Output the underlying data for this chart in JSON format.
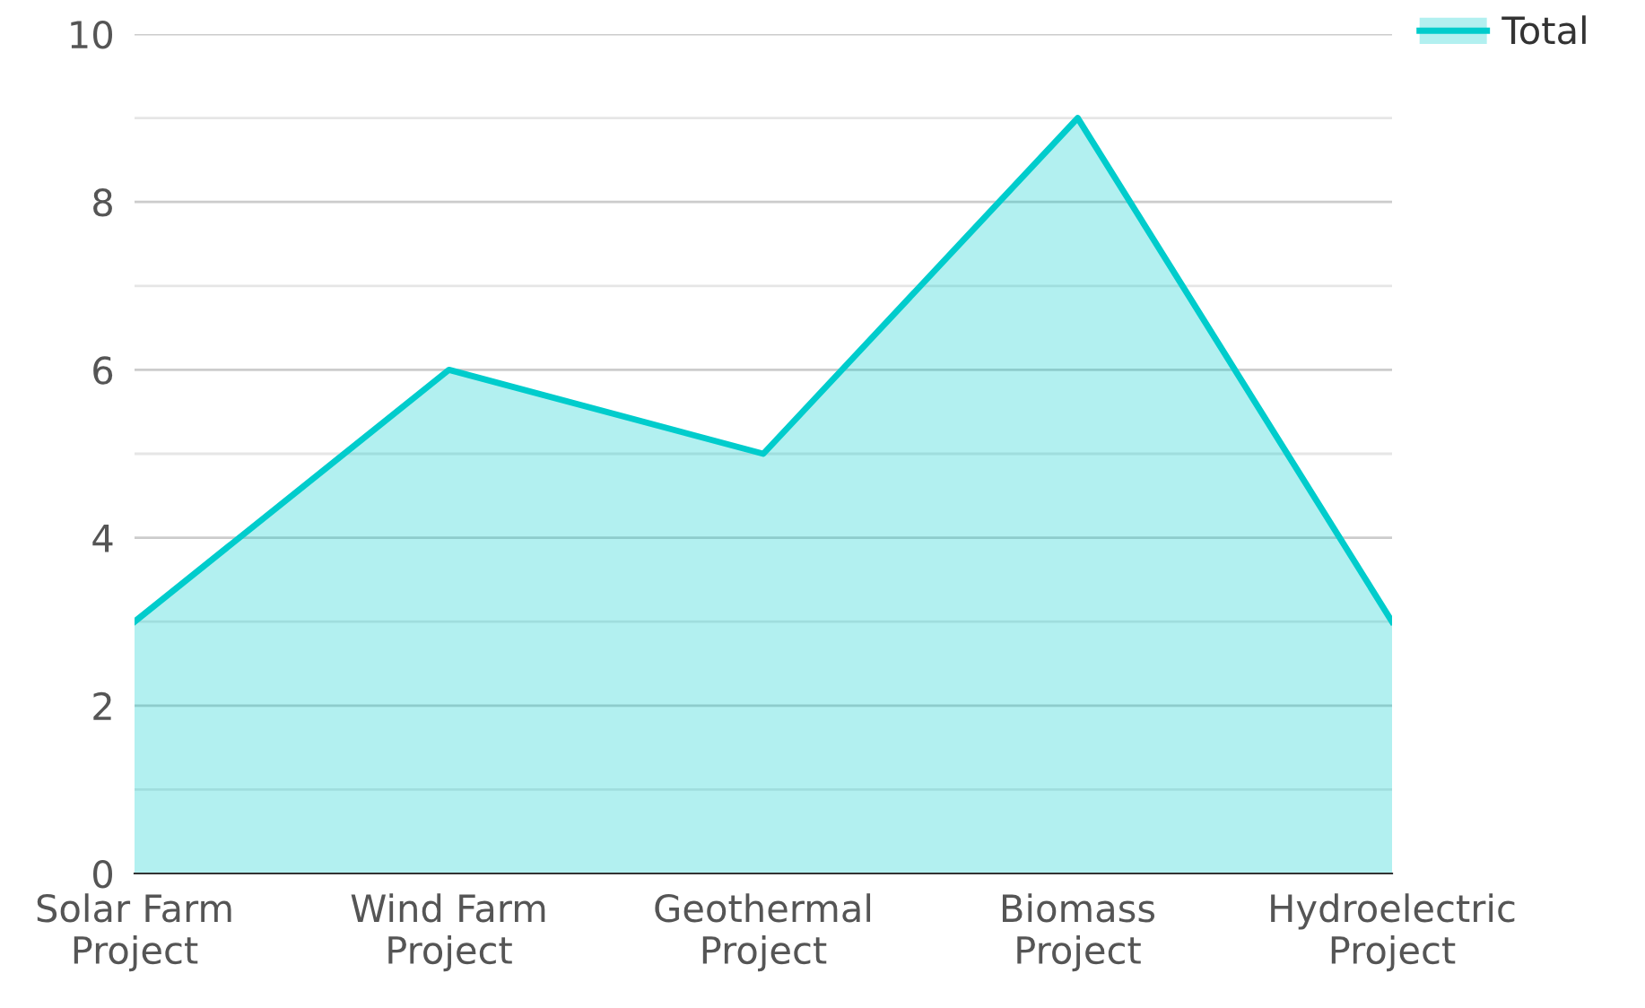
{
  "chart_data": {
    "type": "area",
    "categories": [
      "Solar Farm Project",
      "Wind Farm Project",
      "Geothermal Project",
      "Biomass Project",
      "Hydroelectric Project"
    ],
    "series": [
      {
        "name": "Total",
        "color": "#00cccc",
        "values": [
          3,
          6,
          5,
          9,
          3
        ]
      }
    ],
    "ylim": [
      0,
      10
    ],
    "yticks": [
      0,
      {
        "value": 1,
        "label": null
      },
      2,
      {
        "value": 3,
        "label": null
      },
      4,
      {
        "value": 5,
        "label": null
      },
      6,
      {
        "value": 7,
        "label": null
      },
      8,
      {
        "value": 9,
        "label": null
      },
      10
    ],
    "grid": "y",
    "legend": "top right"
  }
}
